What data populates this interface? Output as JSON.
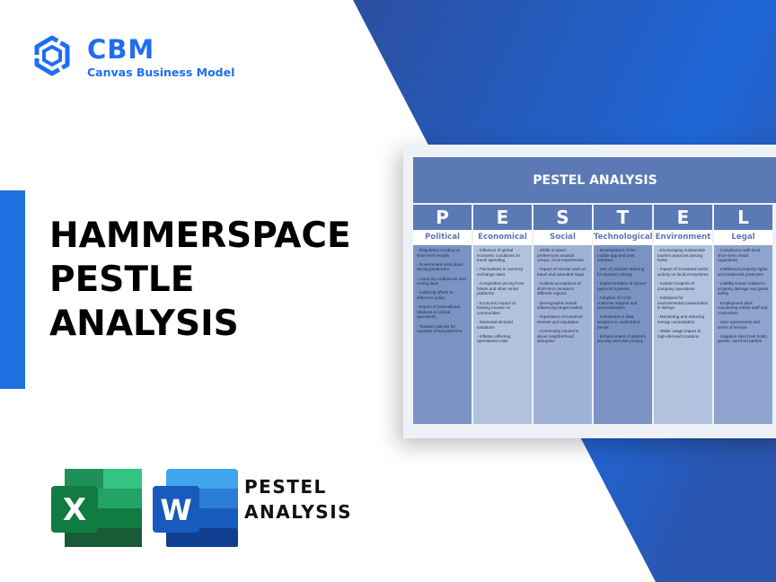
{
  "brand": {
    "name": "CBM",
    "subtitle": "Canvas Business Model"
  },
  "title": [
    "HAMMERSPACE",
    "PESTLE",
    "ANALYSIS"
  ],
  "colors": {
    "accent": "#1f6ef0",
    "background_blue": "#2a5cb8",
    "header": "#5a79b5"
  },
  "card": {
    "title": "PESTEL ANALYSIS",
    "columns": [
      {
        "letter": "P",
        "name": "Political",
        "color": "#7b93c3",
        "items": [
          "- Regulatory scrutiny on short-term rentals",
          "- Government restrictions during pandemics",
          "- Local city ordinances and zoning laws",
          "- Lobbying efforts to influence policy",
          "- Impact of international relations on global operations",
          "- Taxation policies for vacation rental platforms"
        ]
      },
      {
        "letter": "E",
        "name": "Economical",
        "color": "#b1c2de",
        "items": [
          "- Influence of global economic conditions on travel spending",
          "- Fluctuations in currency exchange rates",
          "- Competitive pricing from hotels and other rental platforms",
          "- Economic impact of hosting income on communities",
          "- Seasonal demand variations",
          "- Inflation affecting operational costs"
        ]
      },
      {
        "letter": "S",
        "name": "Social",
        "color": "#9fb2d6",
        "items": [
          "- Shifts in travel preferences towards unique, local experiences",
          "- Impact of remote work on travel and extended stays",
          "- Cultural acceptance of short-term rentals in different regions",
          "- Demographic trends influencing target market",
          "- Importance of customer reviews and reputation",
          "- Community concerns about neighborhood disruption"
        ]
      },
      {
        "letter": "T",
        "name": "Technological",
        "color": "#7b93c3",
        "items": [
          "- Development of the mobile app and user interface",
          "- Use of machine learning for dynamic pricing",
          "- Implementation of secure payment systems",
          "- Adoption of AI for customer support and personalization",
          "- Investment in data analytics to understand trends",
          "- Enhancement of platform security and user privacy"
        ]
      },
      {
        "letter": "E",
        "name": "Environment",
        "color": "#b1c2de",
        "items": [
          "- Encouraging sustainable tourism practices among hosts",
          "- Impact of increased tourist activity on local ecosystems",
          "- Carbon footprint of company operations",
          "- Initiatives for environmental conservation in listings",
          "- Monitoring and reducing energy consumption",
          "- Water usage impact in high-demand locations"
        ]
      },
      {
        "letter": "L",
        "name": "Legal",
        "color": "#8ea3cd",
        "items": [
          "- Compliance with local short-term rental regulations",
          "- Intellectual property rights and trademark protection",
          "- Liability issues related to property damage and guest safety",
          "- Employment laws concerning Airbnb staff and contractors",
          "- User agreements and terms of service",
          "- Litigation risks from hosts, guests, and third parties"
        ]
      }
    ]
  },
  "apps": {
    "excel_letter": "X",
    "word_letter": "W",
    "label": [
      "PESTEL",
      "ANALYSIS"
    ]
  }
}
